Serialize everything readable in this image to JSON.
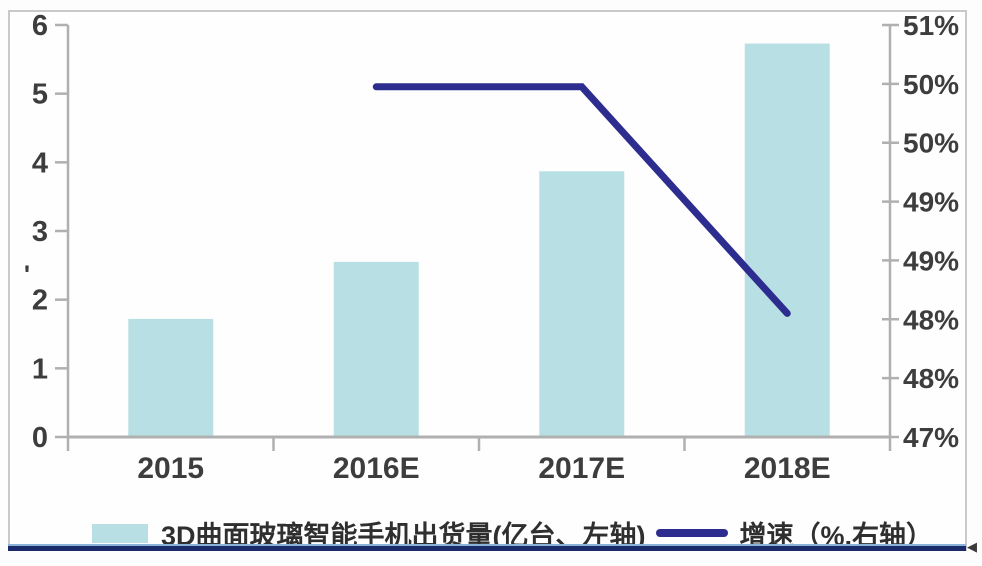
{
  "chart_data": {
    "type": "bar",
    "title": "",
    "xlabel": "",
    "ylabel": "",
    "categories": [
      "2015",
      "2016E",
      "2017E",
      "2018E"
    ],
    "series": [
      {
        "name": "3D曲面玻璃智能手机出货量(亿台、左轴)",
        "kind": "bar",
        "axis": "left",
        "values": [
          1.72,
          2.55,
          3.87,
          5.73
        ],
        "color": "#b8dfe3"
      },
      {
        "name": "增速（%,右轴）",
        "kind": "line",
        "axis": "right",
        "values": [
          null,
          50.4,
          50.4,
          48.2
        ],
        "color": "#2d2d90"
      }
    ],
    "left_axis": {
      "min": 0,
      "max": 6,
      "tick_labels": [
        "0",
        "1",
        "2",
        "3",
        "4",
        "5",
        "6"
      ],
      "stray_mark": "'"
    },
    "right_axis": {
      "min": 47,
      "max": 51,
      "tick_labels": [
        "47%",
        "48%",
        "48%",
        "49%",
        "49%",
        "50%",
        "50%",
        "51%"
      ]
    },
    "grid": false,
    "legend_position": "bottom"
  },
  "decor": {
    "divider_arrow": "◀"
  },
  "style": {
    "bar_color": "#b8dfe3",
    "line_color": "#2d2d90",
    "axis_color": "#b0b0b0",
    "text_color": "#3d3d3d",
    "divider_navy": "#1b2a6b",
    "divider_light": "#8ab4d8"
  }
}
